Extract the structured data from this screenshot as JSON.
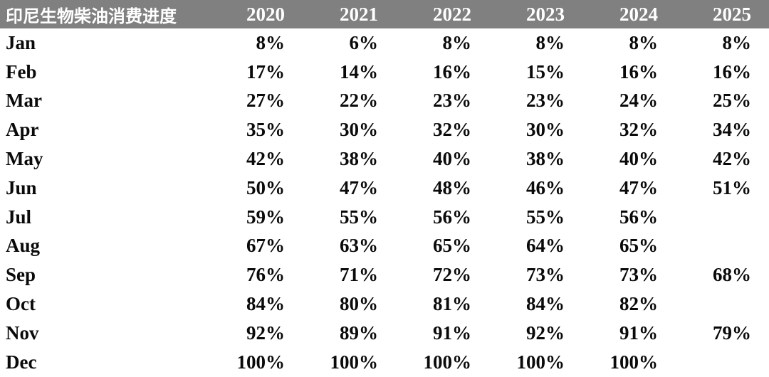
{
  "table": {
    "title": "印尼生物柴油消费进度",
    "years": [
      "2020",
      "2021",
      "2022",
      "2023",
      "2024",
      "2025"
    ],
    "rows": [
      {
        "month": "Jan",
        "values": [
          "8%",
          "6%",
          "8%",
          "8%",
          "8%",
          "8%"
        ]
      },
      {
        "month": "Feb",
        "values": [
          "17%",
          "14%",
          "16%",
          "15%",
          "16%",
          "16%"
        ]
      },
      {
        "month": "Mar",
        "values": [
          "27%",
          "22%",
          "23%",
          "23%",
          "24%",
          "25%"
        ]
      },
      {
        "month": "Apr",
        "values": [
          "35%",
          "30%",
          "32%",
          "30%",
          "32%",
          "34%"
        ]
      },
      {
        "month": "May",
        "values": [
          "42%",
          "38%",
          "40%",
          "38%",
          "40%",
          "42%"
        ]
      },
      {
        "month": "Jun",
        "values": [
          "50%",
          "47%",
          "48%",
          "46%",
          "47%",
          "51%"
        ]
      },
      {
        "month": "Jul",
        "values": [
          "59%",
          "55%",
          "56%",
          "55%",
          "56%",
          ""
        ]
      },
      {
        "month": "Aug",
        "values": [
          "67%",
          "63%",
          "65%",
          "64%",
          "65%",
          ""
        ]
      },
      {
        "month": "Sep",
        "values": [
          "76%",
          "71%",
          "72%",
          "73%",
          "73%",
          "68%"
        ]
      },
      {
        "month": "Oct",
        "values": [
          "84%",
          "80%",
          "81%",
          "84%",
          "82%",
          ""
        ]
      },
      {
        "month": "Nov",
        "values": [
          "92%",
          "89%",
          "91%",
          "92%",
          "91%",
          "79%"
        ]
      },
      {
        "month": "Dec",
        "values": [
          "100%",
          "100%",
          "100%",
          "100%",
          "100%",
          ""
        ]
      }
    ]
  },
  "colors": {
    "header_bg": "#808080",
    "header_text": "#ffffff",
    "body_text": "#0a0a0a",
    "background": "#ffffff"
  },
  "chart_data": {
    "type": "table",
    "title": "印尼生物柴油消费进度",
    "categories": [
      "Jan",
      "Feb",
      "Mar",
      "Apr",
      "May",
      "Jun",
      "Jul",
      "Aug",
      "Sep",
      "Oct",
      "Nov",
      "Dec"
    ],
    "unit": "%",
    "series": [
      {
        "name": "2020",
        "values": [
          8,
          17,
          27,
          35,
          42,
          50,
          59,
          67,
          76,
          84,
          92,
          100
        ]
      },
      {
        "name": "2021",
        "values": [
          6,
          14,
          22,
          30,
          38,
          47,
          55,
          63,
          71,
          80,
          89,
          100
        ]
      },
      {
        "name": "2022",
        "values": [
          8,
          16,
          23,
          32,
          40,
          48,
          56,
          65,
          72,
          81,
          91,
          100
        ]
      },
      {
        "name": "2023",
        "values": [
          8,
          15,
          23,
          30,
          38,
          46,
          55,
          64,
          73,
          84,
          92,
          100
        ]
      },
      {
        "name": "2024",
        "values": [
          8,
          16,
          24,
          32,
          40,
          47,
          56,
          65,
          73,
          82,
          91,
          100
        ]
      },
      {
        "name": "2025",
        "values": [
          8,
          16,
          25,
          34,
          42,
          51,
          null,
          null,
          68,
          null,
          79,
          null
        ]
      }
    ]
  }
}
